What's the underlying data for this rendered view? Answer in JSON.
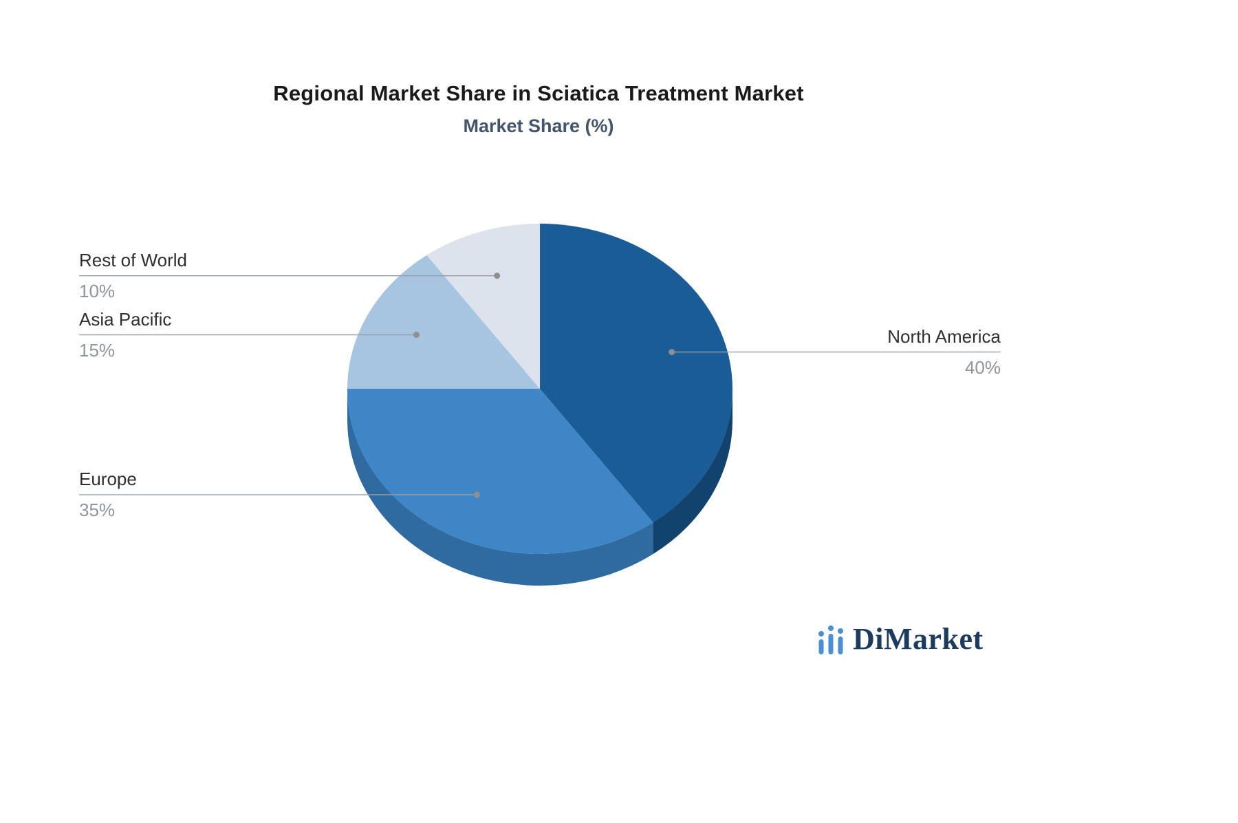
{
  "title": "Regional Market Share in Sciatica Treatment Market",
  "subtitle": "Market Share (%)",
  "branding": {
    "logo_text": "DiMarket",
    "logo_icon": "bar-chart-icon",
    "text_color": "#1d3a5f",
    "icon_color": "#4a8fd3"
  },
  "chart_data": {
    "type": "pie",
    "title": "Regional Market Share in Sciatica Treatment Market",
    "subtitle": "Market Share (%)",
    "style": "3d",
    "unit": "%",
    "legend_position": "none",
    "labels_position": "outside-with-leader-lines",
    "start_angle": "top",
    "direction": "clockwise",
    "slices": [
      {
        "label": "North America",
        "value": 40,
        "display": "40%",
        "color": "#1a5c96",
        "side_color": "#11436e",
        "label_side": "right"
      },
      {
        "label": "Europe",
        "value": 35,
        "display": "35%",
        "color": "#3e86c6",
        "side_color": "#2f6ba1",
        "label_side": "left"
      },
      {
        "label": "Asia Pacific",
        "value": 15,
        "display": "15%",
        "color": "#a7c4e0",
        "side_color": "#7fa3c4",
        "label_side": "left"
      },
      {
        "label": "Rest of World",
        "value": 10,
        "display": "10%",
        "color": "#dce3ed",
        "side_color": "#b3bfd0",
        "label_side": "left"
      }
    ],
    "leader_line_color": "#9aa0a6",
    "leader_dot_color": "#8f8f8f"
  }
}
